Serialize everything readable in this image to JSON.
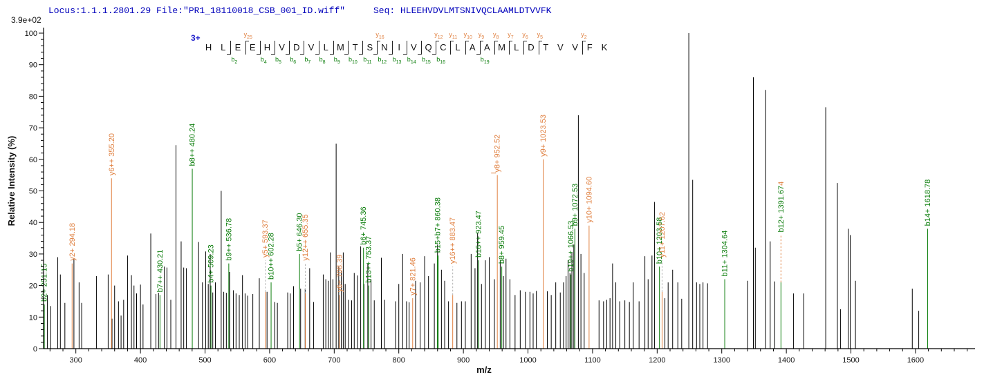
{
  "header": {
    "locus_file": "Locus:1.1.1.2801.29 File:\"PR1_18110018_CSB_001_ID.wiff\"",
    "seq_label": "Seq: HLEEHVDVLMTSNIVQCLAAMLDTVVFK",
    "base_peak_intensity": "3.9e+02"
  },
  "sequence_panel": {
    "charge": "3+",
    "residues": "HLEEHVDVLMTSNIVQCLAAMLDTVVFK",
    "b_ions": [
      2,
      4,
      5,
      6,
      7,
      8,
      9,
      10,
      11,
      12,
      13,
      14,
      15,
      16,
      19
    ],
    "y_ions": [
      25,
      16,
      12,
      11,
      10,
      9,
      8,
      7,
      6,
      5,
      2
    ]
  },
  "chart_data": {
    "type": "bar",
    "title": "MS/MS annotated peptide fragmentation spectrum",
    "xlabel": "m/z",
    "ylabel": "Relative  Intensity  (%)",
    "xlim": [
      250,
      1690
    ],
    "ylim": [
      0,
      100
    ],
    "x_major_ticks": [
      300,
      400,
      500,
      600,
      700,
      800,
      900,
      1000,
      1100,
      1200,
      1300,
      1400,
      1500,
      1600
    ],
    "x_minor_step": 20,
    "y_major_ticks": [
      0,
      10,
      20,
      30,
      40,
      50,
      60,
      70,
      80,
      90,
      100
    ],
    "y_minor_step": 2,
    "legend": "green = b-ions, orange = y-ions, black = unassigned",
    "colors": {
      "b_ion": "#0b7d0b",
      "y_ion": "#e08040",
      "peak": "#000000",
      "axis": "#000000",
      "header_blue": "#0000bb",
      "dash_gray": "#b0b0b0"
    },
    "labeled_peaks": [
      {
        "ion": "b2+",
        "mz": 251.15,
        "intensity": 14,
        "series": "b"
      },
      {
        "ion": "y2+",
        "mz": 294.18,
        "intensity": 27,
        "series": "y"
      },
      {
        "ion": "y6++",
        "mz": 355.2,
        "intensity": 54,
        "series": "y"
      },
      {
        "ion": "b7++",
        "mz": 430.21,
        "intensity": 17,
        "series": "b"
      },
      {
        "ion": "b8++",
        "mz": 480.24,
        "intensity": 57,
        "series": "b"
      },
      {
        "ion": "b4+",
        "mz": 509.23,
        "intensity": 20,
        "series": "b"
      },
      {
        "ion": "b9++",
        "mz": 536.78,
        "intensity": 27,
        "series": "b"
      },
      {
        "ion": "y5+",
        "mz": 593.37,
        "intensity": 18,
        "series": "y",
        "dash_to": 28
      },
      {
        "ion": "b10++",
        "mz": 602.28,
        "intensity": 21,
        "series": "b"
      },
      {
        "ion": "b5+",
        "mz": 646.3,
        "intensity": 30,
        "series": "b"
      },
      {
        "ion": "y12++",
        "mz": 655.35,
        "intensity": 17.5,
        "series": "y",
        "dash_to": 27
      },
      {
        "ion": "y6+",
        "mz": 708.39,
        "intensity": 17,
        "series": "y"
      },
      {
        "ion": "b6+",
        "mz": 745.36,
        "intensity": 32,
        "series": "b"
      },
      {
        "ion": "b13++",
        "mz": 753.37,
        "intensity": 20,
        "series": "b"
      },
      {
        "ion": "y7+",
        "mz": 821.46,
        "intensity": 16,
        "series": "y"
      },
      {
        "ion": "b15+b7+",
        "mz": 860.38,
        "intensity": 29.5,
        "series": "b",
        "bold": true
      },
      {
        "ion": "y16++",
        "mz": 883.47,
        "intensity": 17,
        "series": "y",
        "dash_to": 26
      },
      {
        "ion": "b16++",
        "mz": 923.47,
        "intensity": 28,
        "series": "b"
      },
      {
        "ion": "y8+",
        "mz": 952.52,
        "intensity": 55,
        "series": "y",
        "lead_dash": true
      },
      {
        "ion": "b8+",
        "mz": 959.45,
        "intensity": 26,
        "series": "b"
      },
      {
        "ion": "y9+",
        "mz": 1023.53,
        "intensity": 60,
        "series": "y"
      },
      {
        "ion": "b19++",
        "mz": 1066.53,
        "intensity": 23.5,
        "series": "b"
      },
      {
        "ion": "b9+",
        "mz": 1072.53,
        "intensity": 38,
        "series": "b"
      },
      {
        "ion": "y10+",
        "mz": 1094.6,
        "intensity": 39,
        "series": "y"
      },
      {
        "ion": "b10+",
        "mz": 1203.58,
        "intensity": 26,
        "series": "b"
      },
      {
        "ion": "y11+",
        "mz": 1207.62,
        "intensity": 18,
        "series": "y",
        "dash_to": 28
      },
      {
        "ion": "b11+",
        "mz": 1304.64,
        "intensity": 22,
        "series": "b"
      },
      {
        "ion": "b12+",
        "mz": 1391.67,
        "intensity": 21,
        "series": "b",
        "dash_to": 36,
        "dash_color": "#e08040",
        "suffix": "4"
      },
      {
        "ion": "b14+",
        "mz": 1618.78,
        "intensity": 38,
        "series": "b"
      }
    ],
    "unlabeled_peaks": [
      [
        256,
        17
      ],
      [
        261,
        13.5
      ],
      [
        272,
        29
      ],
      [
        276,
        23.5
      ],
      [
        283,
        14.5
      ],
      [
        297,
        28.5
      ],
      [
        305,
        21
      ],
      [
        309,
        14.5
      ],
      [
        332,
        23
      ],
      [
        350,
        23.5
      ],
      [
        356,
        9.5
      ],
      [
        360,
        20
      ],
      [
        366,
        15
      ],
      [
        370,
        10.5
      ],
      [
        374,
        15.5
      ],
      [
        380,
        29.5
      ],
      [
        386,
        23.3
      ],
      [
        390,
        20
      ],
      [
        394,
        17.5
      ],
      [
        400,
        20.3
      ],
      [
        404,
        14
      ],
      [
        416,
        36.5
      ],
      [
        424,
        17.3
      ],
      [
        428,
        17.7
      ],
      [
        437,
        26
      ],
      [
        441,
        25.7
      ],
      [
        447,
        15.5
      ],
      [
        455,
        64.5
      ],
      [
        463,
        34
      ],
      [
        467,
        25.7
      ],
      [
        471,
        25.5
      ],
      [
        490,
        33.8
      ],
      [
        496,
        21
      ],
      [
        501,
        30.8
      ],
      [
        505,
        20.5
      ],
      [
        508,
        30
      ],
      [
        512,
        17.8
      ],
      [
        516,
        21
      ],
      [
        525,
        50
      ],
      [
        529,
        18
      ],
      [
        533,
        17.7
      ],
      [
        538,
        24.3
      ],
      [
        544,
        18.5
      ],
      [
        548,
        17.5
      ],
      [
        553,
        17
      ],
      [
        558,
        23.3
      ],
      [
        562,
        17.5
      ],
      [
        566,
        16.8
      ],
      [
        574,
        17.3
      ],
      [
        584,
        22.3
      ],
      [
        596,
        18
      ],
      [
        608,
        14.8
      ],
      [
        612,
        14.5
      ],
      [
        628,
        17.8
      ],
      [
        632,
        17.5
      ],
      [
        637,
        19.8
      ],
      [
        648,
        19
      ],
      [
        655,
        19
      ],
      [
        662,
        25.5
      ],
      [
        668,
        14.8
      ],
      [
        683,
        23.5
      ],
      [
        687,
        22
      ],
      [
        691,
        21.5
      ],
      [
        694,
        30.5
      ],
      [
        698,
        22
      ],
      [
        703,
        65
      ],
      [
        707,
        26
      ],
      [
        711,
        24.5
      ],
      [
        714,
        30.5
      ],
      [
        717,
        20.5
      ],
      [
        722,
        15.5
      ],
      [
        727,
        15.3
      ],
      [
        731,
        24
      ],
      [
        736,
        23.2
      ],
      [
        741,
        32.4
      ],
      [
        746,
        20.5
      ],
      [
        752,
        27
      ],
      [
        757,
        22
      ],
      [
        762,
        15.3
      ],
      [
        773,
        28.8
      ],
      [
        778,
        15.5
      ],
      [
        795,
        15
      ],
      [
        800,
        20.5
      ],
      [
        806,
        30
      ],
      [
        812,
        15
      ],
      [
        816,
        14.7
      ],
      [
        826,
        21.5
      ],
      [
        833,
        21
      ],
      [
        840,
        29.3
      ],
      [
        846,
        23
      ],
      [
        855,
        27
      ],
      [
        860,
        33
      ],
      [
        866,
        25
      ],
      [
        871,
        21.5
      ],
      [
        877,
        15
      ],
      [
        890,
        14.5
      ],
      [
        897,
        15
      ],
      [
        903,
        15
      ],
      [
        912,
        30
      ],
      [
        918,
        25.5
      ],
      [
        922,
        36.8
      ],
      [
        928,
        20.5
      ],
      [
        934,
        28
      ],
      [
        940,
        29
      ],
      [
        948,
        22
      ],
      [
        957,
        28
      ],
      [
        962,
        23
      ],
      [
        966,
        28.5
      ],
      [
        972,
        22
      ],
      [
        980,
        17
      ],
      [
        988,
        18.5
      ],
      [
        996,
        18
      ],
      [
        1003,
        18
      ],
      [
        1008,
        17.5
      ],
      [
        1013,
        18.3
      ],
      [
        1030,
        18.2
      ],
      [
        1036,
        17
      ],
      [
        1043,
        21
      ],
      [
        1050,
        17.8
      ],
      [
        1055,
        21
      ],
      [
        1059,
        23
      ],
      [
        1062,
        28
      ],
      [
        1065,
        24
      ],
      [
        1068,
        30.5
      ],
      [
        1071,
        33
      ],
      [
        1078,
        74
      ],
      [
        1082,
        30
      ],
      [
        1087,
        24
      ],
      [
        1110,
        15.3
      ],
      [
        1117,
        15
      ],
      [
        1122,
        15.5
      ],
      [
        1127,
        16
      ],
      [
        1131,
        27
      ],
      [
        1136,
        21
      ],
      [
        1142,
        15
      ],
      [
        1150,
        15.3
      ],
      [
        1157,
        14.8
      ],
      [
        1163,
        21
      ],
      [
        1172,
        15
      ],
      [
        1181,
        29.3
      ],
      [
        1186,
        22
      ],
      [
        1192,
        29.5
      ],
      [
        1196,
        46.5
      ],
      [
        1212,
        16
      ],
      [
        1217,
        21
      ],
      [
        1224,
        25
      ],
      [
        1232,
        21
      ],
      [
        1238,
        15.8
      ],
      [
        1249,
        100
      ],
      [
        1255,
        53.5
      ],
      [
        1261,
        21
      ],
      [
        1266,
        20.5
      ],
      [
        1271,
        21
      ],
      [
        1278,
        20.7
      ],
      [
        1340,
        21.5
      ],
      [
        1349,
        86
      ],
      [
        1352,
        32
      ],
      [
        1368,
        82
      ],
      [
        1375,
        34
      ],
      [
        1382,
        21.3
      ],
      [
        1411,
        17.5
      ],
      [
        1427,
        17.5
      ],
      [
        1461,
        76.5
      ],
      [
        1479,
        52.5
      ],
      [
        1484,
        12.5
      ],
      [
        1496,
        38
      ],
      [
        1499,
        36
      ],
      [
        1507,
        21.5
      ],
      [
        1595,
        19
      ],
      [
        1605,
        12
      ]
    ]
  }
}
